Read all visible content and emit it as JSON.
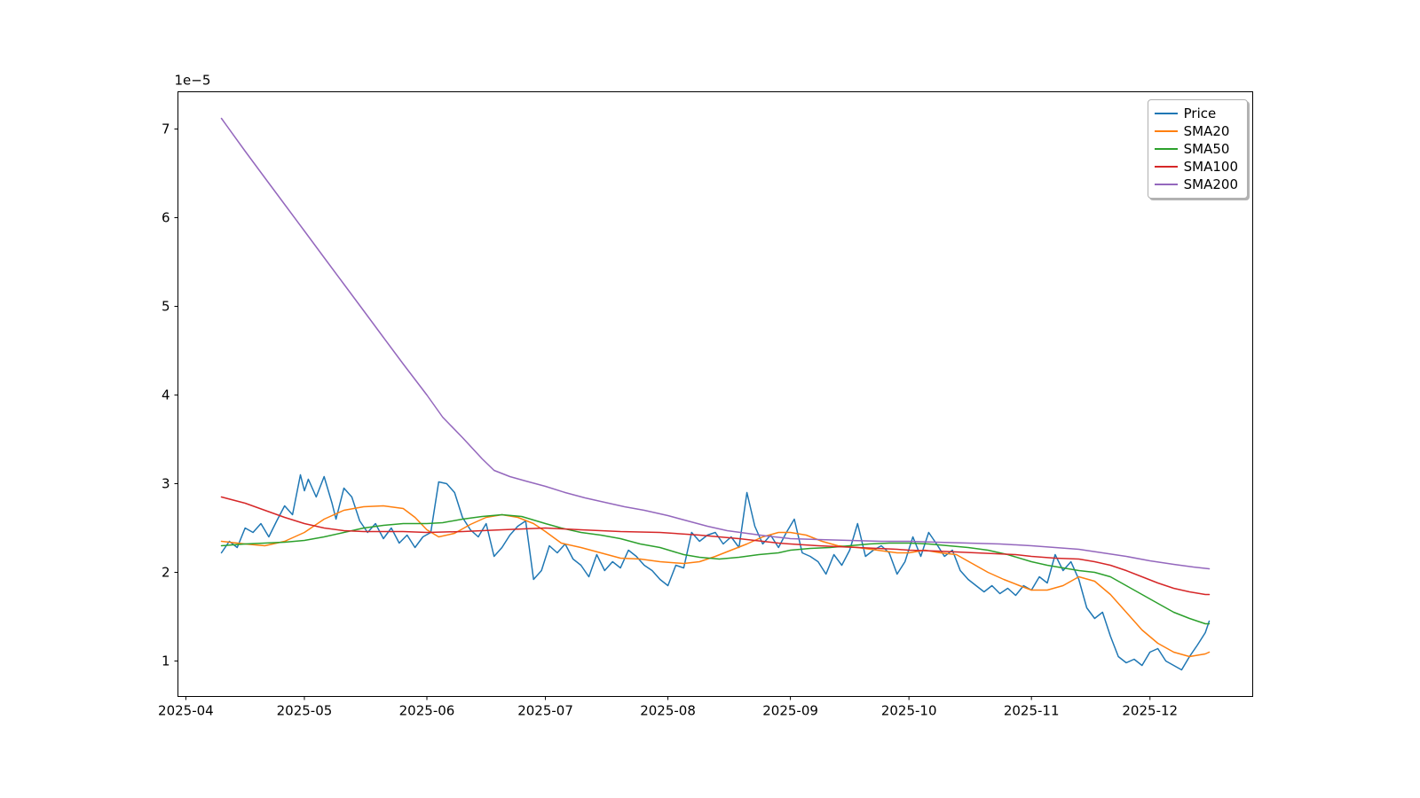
{
  "figure": {
    "background": "#ffffff"
  },
  "chart_data": {
    "type": "line",
    "title": "",
    "xlabel": "",
    "ylabel": "",
    "offset_text": "1e−5",
    "y_unit": "1e-5",
    "grid": false,
    "legend_position": "upper right",
    "x_epoch": "2025-04-01",
    "x_tick_days": [
      0,
      30,
      61,
      91,
      122,
      153,
      183,
      214,
      244
    ],
    "x_tick_labels": [
      "2025-04",
      "2025-05",
      "2025-06",
      "2025-07",
      "2025-08",
      "2025-09",
      "2025-10",
      "2025-11",
      "2025-12"
    ],
    "y_ticks": [
      1,
      2,
      3,
      4,
      5,
      6,
      7
    ],
    "xlim_days": [
      -2,
      270
    ],
    "ylim": [
      0.6,
      7.42
    ],
    "series": [
      {
        "name": "Price",
        "color": "#1f77b4",
        "x": [
          9,
          11,
          13,
          15,
          17,
          19,
          21,
          23,
          25,
          27,
          29,
          30,
          31,
          33,
          35,
          37,
          38,
          40,
          42,
          44,
          46,
          48,
          50,
          52,
          54,
          56,
          58,
          60,
          62,
          64,
          66,
          68,
          70,
          72,
          74,
          76,
          78,
          80,
          82,
          84,
          86,
          88,
          90,
          92,
          94,
          96,
          98,
          100,
          102,
          104,
          106,
          108,
          110,
          112,
          114,
          116,
          118,
          120,
          122,
          124,
          126,
          128,
          130,
          132,
          134,
          136,
          138,
          140,
          142,
          144,
          146,
          148,
          150,
          152,
          154,
          156,
          158,
          160,
          162,
          164,
          166,
          168,
          170,
          172,
          174,
          176,
          178,
          180,
          182,
          184,
          186,
          188,
          190,
          192,
          194,
          196,
          198,
          200,
          202,
          204,
          206,
          208,
          210,
          212,
          214,
          216,
          218,
          220,
          222,
          224,
          226,
          228,
          230,
          232,
          234,
          236,
          238,
          240,
          242,
          244,
          246,
          248,
          250,
          252,
          254,
          256,
          258,
          259
        ],
        "y": [
          2.22,
          2.35,
          2.28,
          2.5,
          2.45,
          2.55,
          2.4,
          2.58,
          2.75,
          2.65,
          3.1,
          2.92,
          3.05,
          2.85,
          3.08,
          2.78,
          2.6,
          2.95,
          2.85,
          2.58,
          2.45,
          2.55,
          2.38,
          2.5,
          2.33,
          2.42,
          2.28,
          2.4,
          2.45,
          3.02,
          3.0,
          2.9,
          2.62,
          2.48,
          2.4,
          2.55,
          2.18,
          2.28,
          2.42,
          2.52,
          2.58,
          1.92,
          2.02,
          2.3,
          2.22,
          2.32,
          2.15,
          2.08,
          1.95,
          2.2,
          2.02,
          2.12,
          2.05,
          2.25,
          2.18,
          2.08,
          2.02,
          1.92,
          1.85,
          2.08,
          2.05,
          2.45,
          2.35,
          2.42,
          2.45,
          2.32,
          2.4,
          2.28,
          2.9,
          2.52,
          2.32,
          2.42,
          2.28,
          2.45,
          2.6,
          2.22,
          2.18,
          2.12,
          1.98,
          2.2,
          2.08,
          2.25,
          2.55,
          2.18,
          2.25,
          2.3,
          2.22,
          1.98,
          2.12,
          2.4,
          2.18,
          2.45,
          2.32,
          2.18,
          2.25,
          2.02,
          1.92,
          1.85,
          1.78,
          1.85,
          1.76,
          1.82,
          1.74,
          1.85,
          1.8,
          1.95,
          1.88,
          2.2,
          2.02,
          2.12,
          1.92,
          1.6,
          1.48,
          1.55,
          1.28,
          1.05,
          0.98,
          1.02,
          0.95,
          1.1,
          1.14,
          1.0,
          0.95,
          0.9,
          1.05,
          1.18,
          1.32,
          1.45
        ]
      },
      {
        "name": "SMA20",
        "color": "#ff7f0e",
        "x": [
          9,
          15,
          20,
          25,
          30,
          35,
          40,
          45,
          50,
          55,
          58,
          61,
          64,
          68,
          72,
          76,
          80,
          84,
          88,
          91,
          95,
          100,
          105,
          110,
          115,
          120,
          126,
          130,
          134,
          138,
          142,
          146,
          150,
          153,
          157,
          161,
          165,
          170,
          175,
          180,
          183,
          187,
          191,
          195,
          199,
          203,
          207,
          211,
          214,
          218,
          222,
          226,
          230,
          234,
          238,
          242,
          246,
          250,
          254,
          258,
          259
        ],
        "y": [
          2.35,
          2.32,
          2.3,
          2.35,
          2.45,
          2.6,
          2.7,
          2.74,
          2.75,
          2.72,
          2.62,
          2.48,
          2.4,
          2.44,
          2.54,
          2.62,
          2.65,
          2.62,
          2.55,
          2.46,
          2.33,
          2.28,
          2.22,
          2.16,
          2.15,
          2.12,
          2.1,
          2.12,
          2.18,
          2.25,
          2.32,
          2.4,
          2.45,
          2.45,
          2.42,
          2.35,
          2.3,
          2.28,
          2.25,
          2.22,
          2.22,
          2.25,
          2.22,
          2.2,
          2.1,
          2.0,
          1.92,
          1.85,
          1.8,
          1.8,
          1.85,
          1.95,
          1.9,
          1.75,
          1.55,
          1.35,
          1.2,
          1.1,
          1.05,
          1.08,
          1.1
        ]
      },
      {
        "name": "SMA50",
        "color": "#2ca02c",
        "x": [
          9,
          15,
          20,
          25,
          30,
          35,
          40,
          45,
          50,
          55,
          61,
          65,
          70,
          75,
          80,
          85,
          91,
          95,
          100,
          105,
          110,
          115,
          120,
          126,
          130,
          135,
          140,
          145,
          150,
          153,
          158,
          163,
          168,
          173,
          178,
          183,
          188,
          193,
          198,
          203,
          208,
          214,
          218,
          222,
          226,
          230,
          234,
          238,
          242,
          246,
          250,
          254,
          258,
          259
        ],
        "y": [
          2.3,
          2.32,
          2.33,
          2.34,
          2.36,
          2.4,
          2.45,
          2.5,
          2.53,
          2.55,
          2.55,
          2.56,
          2.6,
          2.63,
          2.65,
          2.63,
          2.55,
          2.5,
          2.45,
          2.42,
          2.38,
          2.32,
          2.28,
          2.2,
          2.17,
          2.15,
          2.17,
          2.2,
          2.22,
          2.25,
          2.27,
          2.28,
          2.3,
          2.32,
          2.33,
          2.33,
          2.32,
          2.3,
          2.28,
          2.25,
          2.2,
          2.12,
          2.08,
          2.05,
          2.02,
          2.0,
          1.95,
          1.85,
          1.75,
          1.65,
          1.55,
          1.48,
          1.42,
          1.42
        ]
      },
      {
        "name": "SMA100",
        "color": "#d62728",
        "x": [
          9,
          15,
          20,
          25,
          30,
          35,
          40,
          45,
          50,
          55,
          61,
          70,
          80,
          91,
          100,
          110,
          120,
          130,
          140,
          150,
          153,
          160,
          170,
          180,
          183,
          190,
          200,
          210,
          214,
          220,
          226,
          230,
          234,
          238,
          242,
          246,
          250,
          254,
          258,
          259
        ],
        "y": [
          2.85,
          2.78,
          2.7,
          2.62,
          2.55,
          2.5,
          2.47,
          2.46,
          2.46,
          2.46,
          2.45,
          2.46,
          2.48,
          2.5,
          2.48,
          2.46,
          2.45,
          2.42,
          2.38,
          2.33,
          2.32,
          2.3,
          2.28,
          2.26,
          2.25,
          2.24,
          2.22,
          2.2,
          2.18,
          2.16,
          2.15,
          2.12,
          2.08,
          2.02,
          1.95,
          1.88,
          1.82,
          1.78,
          1.75,
          1.75
        ]
      },
      {
        "name": "SMA200",
        "color": "#9467bd",
        "x": [
          9,
          15,
          20,
          25,
          30,
          35,
          40,
          45,
          50,
          55,
          61,
          65,
          70,
          75,
          78,
          82,
          86,
          91,
          96,
          101,
          106,
          111,
          116,
          122,
          127,
          132,
          137,
          142,
          147,
          153,
          160,
          168,
          176,
          183,
          190,
          198,
          206,
          214,
          220,
          226,
          232,
          238,
          244,
          250,
          255,
          259
        ],
        "y": [
          7.12,
          6.75,
          6.45,
          6.15,
          5.85,
          5.55,
          5.25,
          4.95,
          4.65,
          4.35,
          4.0,
          3.75,
          3.52,
          3.28,
          3.15,
          3.08,
          3.03,
          2.97,
          2.9,
          2.84,
          2.79,
          2.74,
          2.7,
          2.64,
          2.58,
          2.52,
          2.47,
          2.44,
          2.41,
          2.38,
          2.37,
          2.36,
          2.35,
          2.35,
          2.34,
          2.33,
          2.32,
          2.3,
          2.28,
          2.26,
          2.22,
          2.18,
          2.13,
          2.09,
          2.06,
          2.04
        ]
      }
    ]
  }
}
